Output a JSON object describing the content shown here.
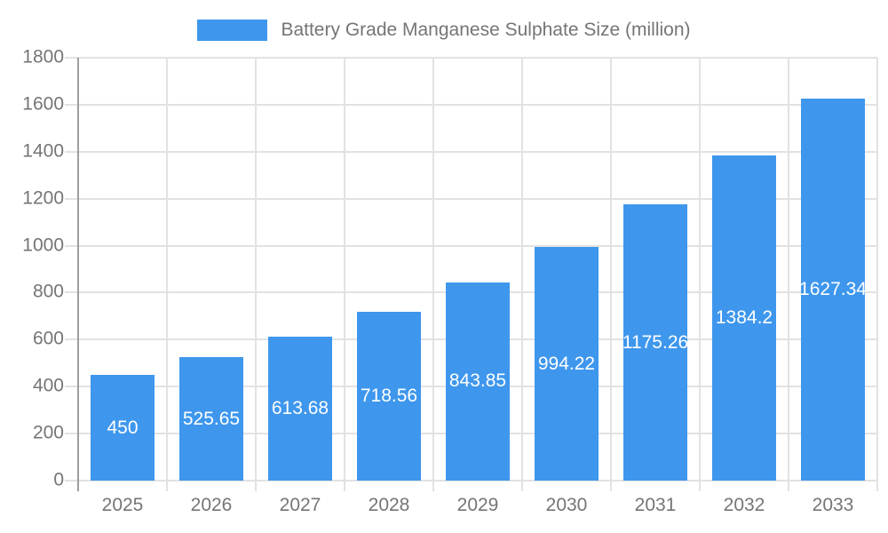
{
  "chart_data": {
    "type": "bar",
    "title": "Battery Grade Manganese Sulphate Size (million)",
    "legend_position": "top",
    "categories": [
      "2025",
      "2026",
      "2027",
      "2028",
      "2029",
      "2030",
      "2031",
      "2032",
      "2033"
    ],
    "values": [
      450,
      525.65,
      613.68,
      718.56,
      843.85,
      994.22,
      1175.26,
      1384.2,
      1627.34
    ],
    "value_labels": [
      "450",
      "525.65",
      "613.68",
      "718.56",
      "843.85",
      "994.22",
      "1175.26",
      "1384.2",
      "1627.34"
    ],
    "xlabel": "",
    "ylabel": "",
    "ylim": [
      0,
      1800
    ],
    "yticks": [
      0,
      200,
      400,
      600,
      800,
      1000,
      1200,
      1400,
      1600,
      1800
    ],
    "grid": true,
    "colors": {
      "bar": "#3E97ED",
      "value_label": "#FFFFFF",
      "axis_text": "#757575",
      "gridline": "#E2E2E2",
      "axis_line": "#9E9E9E",
      "background": "#FFFFFF"
    }
  }
}
